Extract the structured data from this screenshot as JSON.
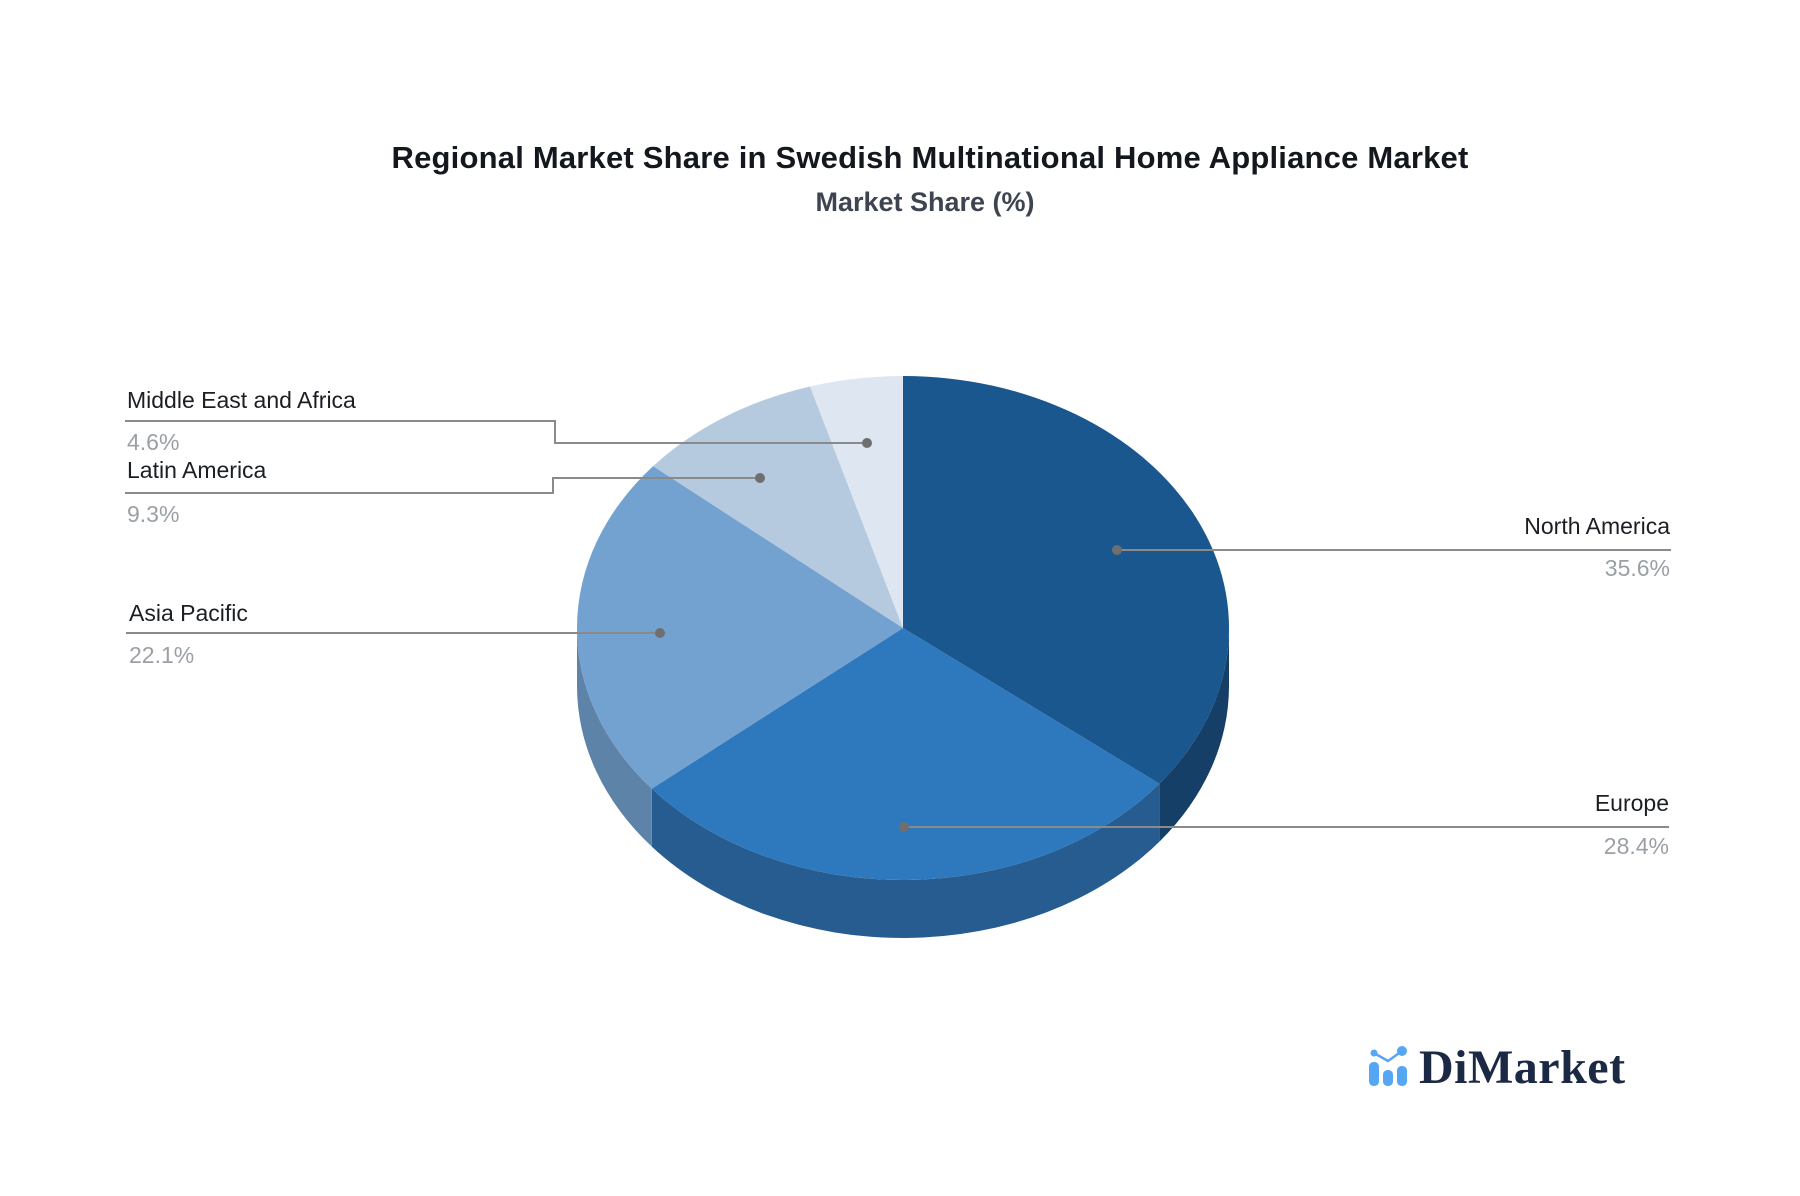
{
  "chart_data": {
    "type": "pie",
    "style": "3d",
    "title": "Regional Market Share in Swedish Multinational Home Appliance Market",
    "subtitle": "Market Share (%)",
    "unit": "%",
    "start_angle_deg": 0,
    "direction": "clockwise",
    "legend": "none (callout labels with leader lines)",
    "segments": [
      {
        "label": "North America",
        "value": 35.6,
        "display": "35.6%",
        "color": "#1A578F",
        "side_color": "#163F68"
      },
      {
        "label": "Europe",
        "value": 28.4,
        "display": "28.4%",
        "color": "#2E79BE",
        "side_color": "#265C90"
      },
      {
        "label": "Asia Pacific",
        "value": 22.1,
        "display": "22.1%",
        "color": "#74A2D0",
        "side_color": "#5E83A9"
      },
      {
        "label": "Latin America",
        "value": 9.3,
        "display": "9.3%",
        "color": "#B6CADF",
        "side_color": "#8FA9C2"
      },
      {
        "label": "Middle East and Africa",
        "value": 4.6,
        "display": "4.6%",
        "color": "#DEE6F1",
        "side_color": "#B9C6D6"
      }
    ],
    "labels": {
      "name_color": "#1b1f24",
      "value_color": "#9aa0a6",
      "line_color": "#8a8a8a",
      "dot_color": "#6f6f6f"
    }
  },
  "branding": {
    "logo_text": "DiMarket",
    "logo_color": "#1b2944",
    "icon_color": "#55a7f3"
  }
}
